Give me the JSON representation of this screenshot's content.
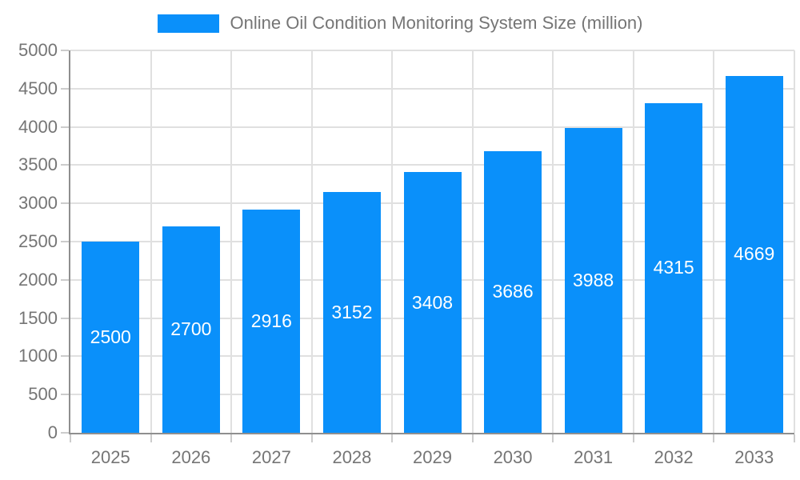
{
  "colors": {
    "bar": "#0a90fa",
    "bar-label": "#ffffff",
    "text": "#757575",
    "grid": "#e0e0e0",
    "axis": "#8f8f8f",
    "tick": "#cccccc",
    "bg": "#ffffff"
  },
  "chart_data": {
    "type": "bar",
    "title": "Online Oil Condition Monitoring System Size (million)",
    "legend": [
      "Online Oil Condition Monitoring System Size (million)"
    ],
    "legend_position": "top",
    "categories": [
      "2025",
      "2026",
      "2027",
      "2028",
      "2029",
      "2030",
      "2031",
      "2032",
      "2033"
    ],
    "values": [
      2500,
      2700,
      2916,
      3152,
      3408,
      3686,
      3988,
      4315,
      4669
    ],
    "bar_labels": [
      "2500",
      "2700",
      "2916",
      "3152",
      "3408",
      "3686",
      "3988",
      "4315",
      "4669"
    ],
    "xlabel": "",
    "ylabel": "",
    "ylim": [
      0,
      5000
    ],
    "ytick_step": 500,
    "yticks": [
      "0",
      "500",
      "1000",
      "1500",
      "2000",
      "2500",
      "3000",
      "3500",
      "4000",
      "4500",
      "5000"
    ],
    "grid": "on"
  }
}
